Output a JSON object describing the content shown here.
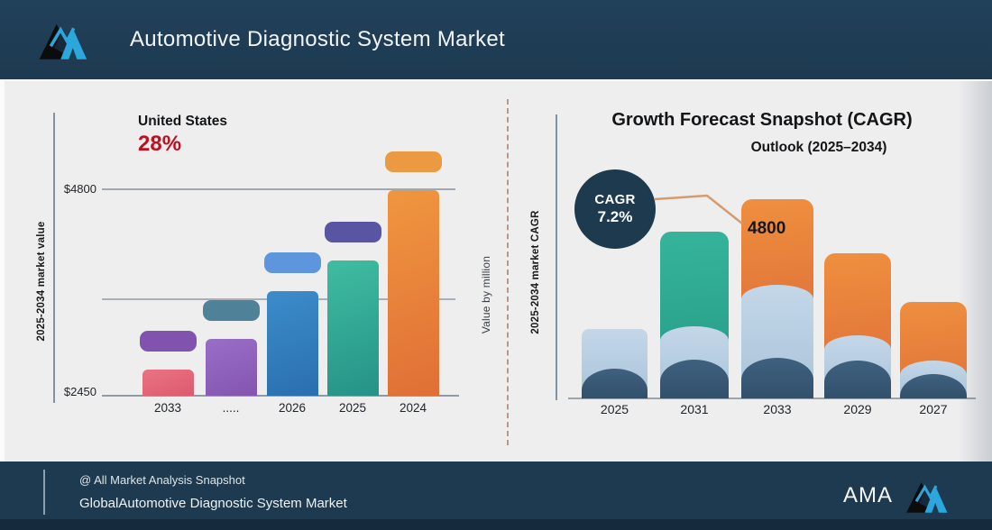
{
  "header": {
    "title": "Automotive Diagnostic System Market",
    "logo": "ama-mountain-logo"
  },
  "footer": {
    "credit": "@ All Market Analysis Snapshot",
    "source": "GlobalAutomotive Diagnostic System Market",
    "brand": "AMA",
    "logo": "ama-mountain-logo"
  },
  "colors": {
    "header_bg": "#1d3a50",
    "content_bg": "#eeeeef",
    "accent_red": "#c00e1f",
    "badge_navy": "#1d3a4e",
    "connector": "#d49b6f",
    "axis": "#7e93a3"
  },
  "chart_data": [
    {
      "type": "bar",
      "title": "United States",
      "highlight_value": "28%",
      "ylabel_left": "2025-2034 market value",
      "ylabel_right": "Value by million",
      "ytick_top": "$4800",
      "ytick_bottom": "$2450",
      "ylim": [
        2450,
        4800
      ],
      "gridlines": [
        "$4800 line",
        "unlabeled mid line",
        "baseline at $2450"
      ],
      "categories": [
        "2033",
        ".....",
        "2026",
        "2025",
        "2024"
      ],
      "values": [
        2750,
        3100,
        3650,
        4000,
        4800
      ],
      "bar_gradients": [
        [
          "#ea7384",
          "#dc5a6e"
        ],
        [
          "#9a6ec7",
          "#8355b0"
        ],
        [
          "#3c8ccb",
          "#2a6fae"
        ],
        [
          "#3fbda1",
          "#259287"
        ],
        [
          "#f0963f",
          "#e06f36"
        ]
      ],
      "cap_colors": [
        "#8152ae",
        "#4f8198",
        "#5d96dd",
        "#5a55a2",
        "#eb9a41"
      ]
    },
    {
      "type": "stacked-bar",
      "title": "Growth Forecast Snapshot (CAGR)",
      "subtitle": "Outlook (2025–2034)",
      "ylabel_left": "2025-2034 market CAGR",
      "badge_label": "CAGR",
      "badge_value": "7.2%",
      "annotation_value": "4800",
      "annotation_category": "2033",
      "ylim": [
        0,
        4800
      ],
      "categories": [
        "2025",
        "2031",
        "2033",
        "2029",
        "2027"
      ],
      "series": [
        {
          "name": "base",
          "color_top": "#3f617f",
          "color_bottom": "#32506c",
          "values": [
            720,
            935,
            975,
            910,
            585
          ]
        },
        {
          "name": "middle",
          "color_top": "#c4d7e8",
          "color_bottom": "#a9c3da",
          "values": [
            960,
            805,
            1760,
            610,
            325
          ]
        },
        {
          "name": "top",
          "colors": [
            "none",
            "#36b49b",
            "#ef8f3e",
            "#ef8f3e",
            "#ef8f3e"
          ],
          "colors_dark": [
            "none",
            "#2aa18c",
            "#e2763a",
            "#e2763a",
            "#e2763a"
          ],
          "values": [
            0,
            2280,
            2065,
            1975,
            1410
          ]
        }
      ]
    }
  ]
}
